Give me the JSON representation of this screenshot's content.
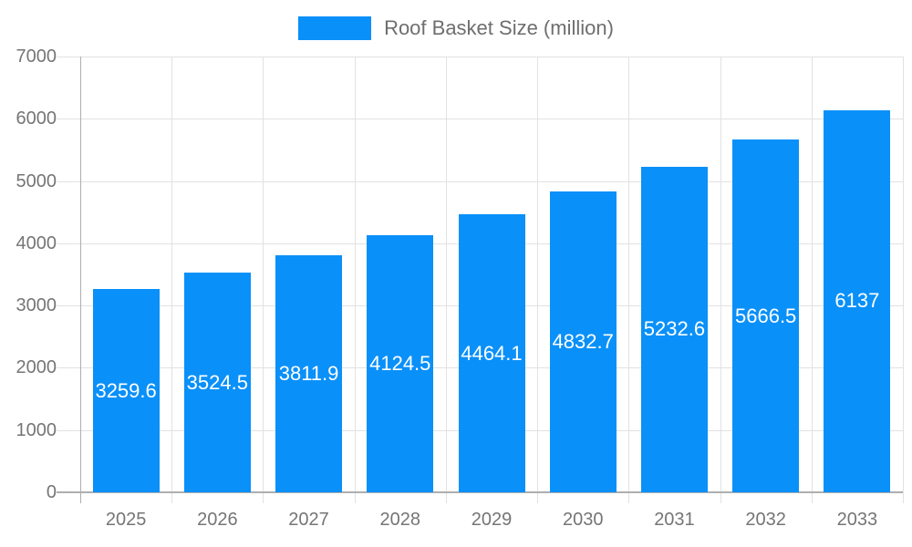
{
  "legend": {
    "label": "Roof Basket Size (million)"
  },
  "colors": {
    "bar": "#0a90f9",
    "grid": "#e2e2e2",
    "axis_line": "#aeaeae",
    "axis_text": "#757575",
    "legend_text": "#6e6e6e",
    "value_label": "#ffffff",
    "background": "#ffffff"
  },
  "chart_data": {
    "type": "bar",
    "title": "",
    "legend": "Roof Basket Size (million)",
    "legend_position": "top",
    "categories": [
      "2025",
      "2026",
      "2027",
      "2028",
      "2029",
      "2030",
      "2031",
      "2032",
      "2033"
    ],
    "values": [
      3259.6,
      3524.5,
      3811.9,
      4124.5,
      4464.1,
      4832.7,
      5232.6,
      5666.5,
      6137
    ],
    "value_labels": [
      "3259.6",
      "3524.5",
      "3811.9",
      "4124.5",
      "4464.1",
      "4832.7",
      "5232.6",
      "5666.5",
      "6137"
    ],
    "xlabel": "",
    "ylabel": "",
    "ylim": [
      0,
      7000
    ],
    "yticks": [
      0,
      1000,
      2000,
      3000,
      4000,
      5000,
      6000,
      7000
    ],
    "grid": true
  }
}
